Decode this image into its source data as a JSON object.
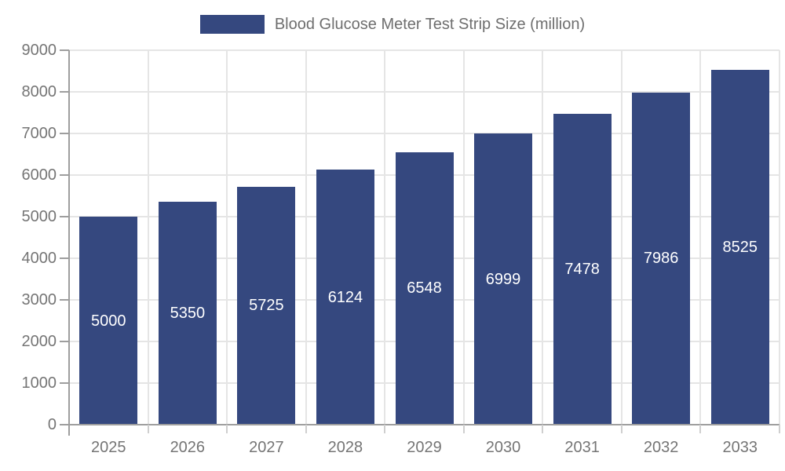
{
  "legend": {
    "label": "Blood Glucose Meter Test Strip Size (million)",
    "swatch_color": "#35487F"
  },
  "chart_data": {
    "type": "bar",
    "title": "Blood Glucose Meter Test Strip Size (million)",
    "categories": [
      "2025",
      "2026",
      "2027",
      "2028",
      "2029",
      "2030",
      "2031",
      "2032",
      "2033"
    ],
    "series": [
      {
        "name": "Blood Glucose Meter Test Strip Size (million)",
        "values": [
          5000,
          5350,
          5725,
          6124,
          6548,
          6999,
          7478,
          7986,
          8525
        ]
      }
    ],
    "xlabel": "",
    "ylabel": "",
    "ylim": [
      0,
      9000
    ],
    "yticks": [
      0,
      1000,
      2000,
      3000,
      4000,
      5000,
      6000,
      7000,
      8000,
      9000
    ],
    "grid": true,
    "legend_position": "top",
    "bar_label_position": "inside-center",
    "colors": {
      "bar": "#35487F",
      "bar_label": "#FFFFFF",
      "axis_line": "#9E9E9E",
      "gridline": "#E5E5E5",
      "tick_label": "#757575",
      "legend_text": "#6E6E6E",
      "background": "#FFFFFF"
    }
  }
}
